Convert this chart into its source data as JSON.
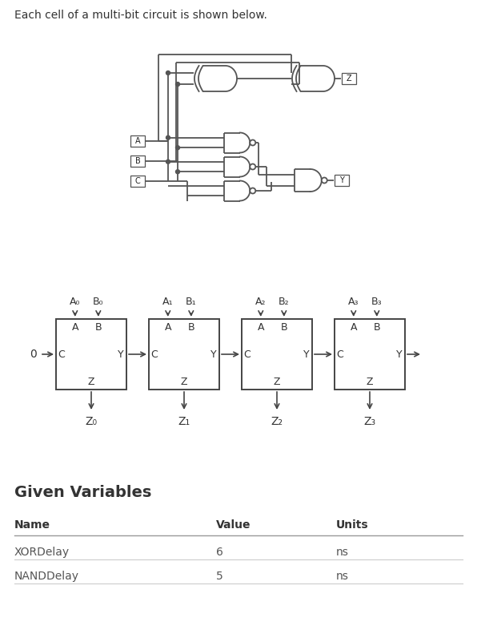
{
  "title_text": "Each cell of a multi-bit circuit is shown below.",
  "given_variables_title": "Given Variables",
  "table_headers": [
    "Name",
    "Value",
    "Units"
  ],
  "table_rows": [
    [
      "XORDelay",
      "6",
      "ns"
    ],
    [
      "NANDDelay",
      "5",
      "ns"
    ]
  ],
  "subscripts": [
    "₀",
    "₁",
    "₂",
    "₃"
  ],
  "bg_color": "#ffffff",
  "lc": "#555555",
  "gate_lw": 1.3
}
